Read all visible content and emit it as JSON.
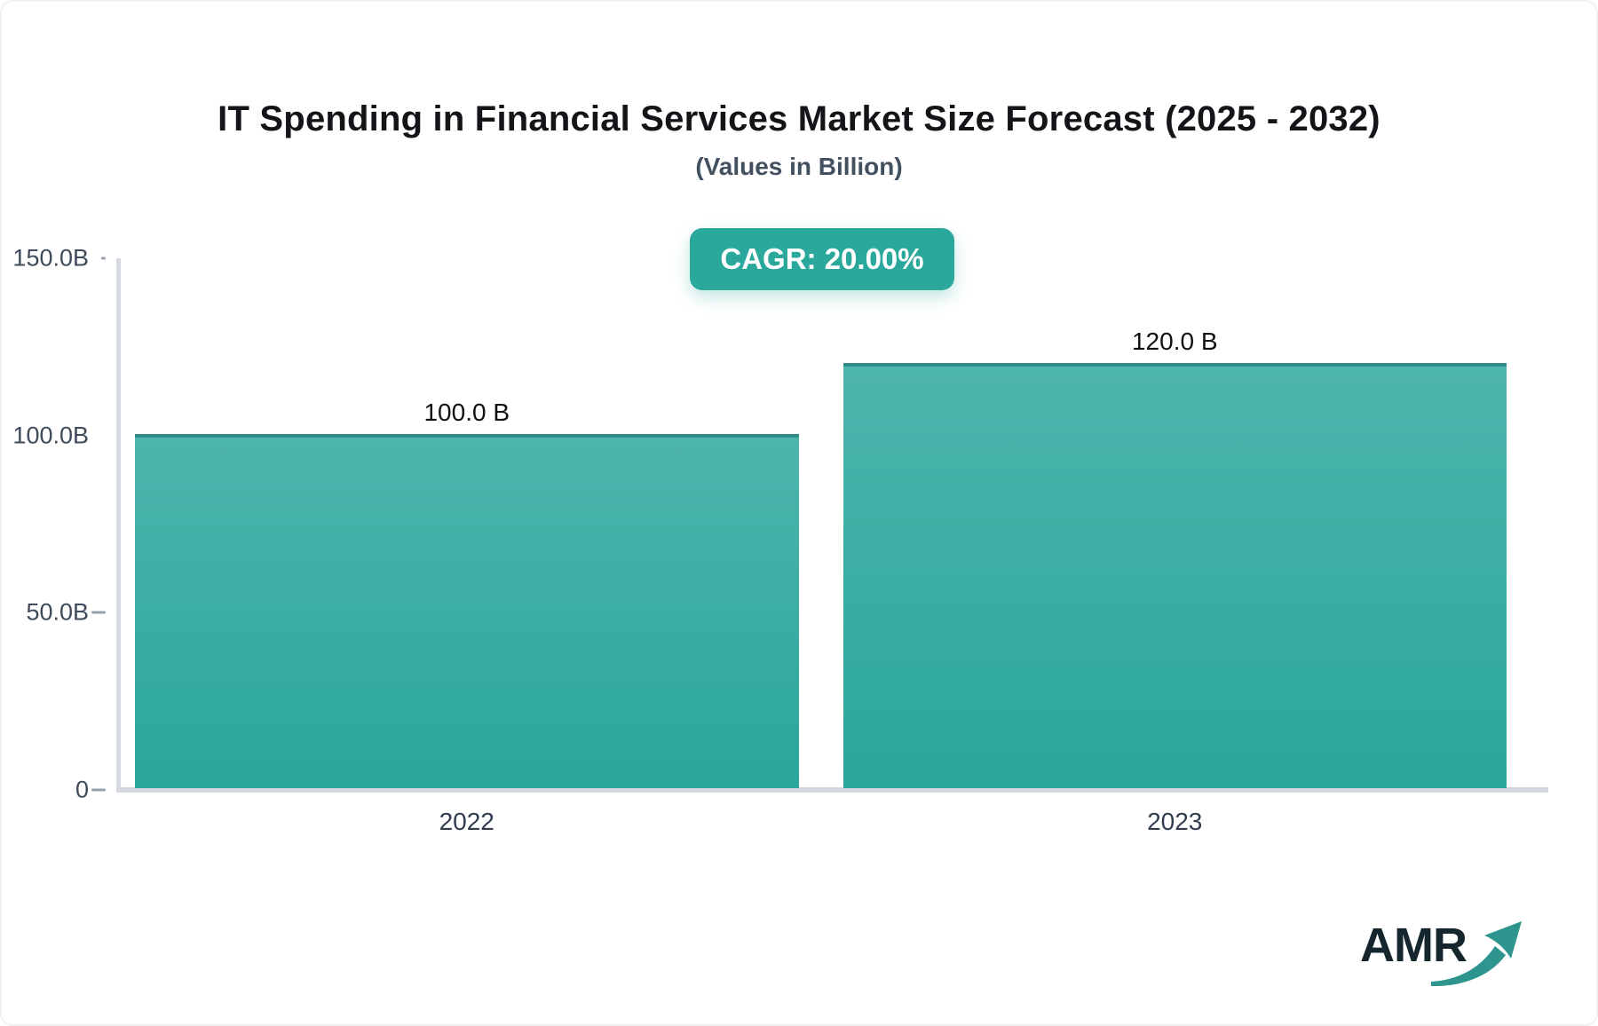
{
  "page": {
    "bg": "#ffffff",
    "border_color": "#f0f2f4"
  },
  "chart_data": {
    "type": "bar",
    "title": "IT Spending in Financial Services Market Size Forecast (2025 - 2032)",
    "subtitle": "(Values in Billion)",
    "cagr_badge": "CAGR: 20.00%",
    "categories": [
      "2022",
      "2023"
    ],
    "values": [
      100.0,
      120.0
    ],
    "value_labels": [
      "100.0 B",
      "120.0 B"
    ],
    "y_ticks": [
      {
        "label": "150.0B",
        "value": 150,
        "dash": "dot"
      },
      {
        "label": "100.0B",
        "value": 100,
        "dash": "none"
      },
      {
        "label": "50.0B",
        "value": 50,
        "dash": "dash"
      },
      {
        "label": "0",
        "value": 0,
        "dash": "dash"
      }
    ],
    "ylim": [
      0,
      150
    ],
    "grid": "off",
    "legend": "none",
    "colors": {
      "bar_gradient_top": "#4db5ac",
      "bar_gradient_bottom": "#29a69a",
      "bar_top_border": "#2f8e88",
      "badge_bg": "#2aa89c",
      "axis_line": "#d7dae0",
      "tick_dash": "#97a0aa"
    }
  },
  "logo": {
    "text": "AMR",
    "text_color": "#16262e",
    "arrow_color": "#2d958e"
  }
}
